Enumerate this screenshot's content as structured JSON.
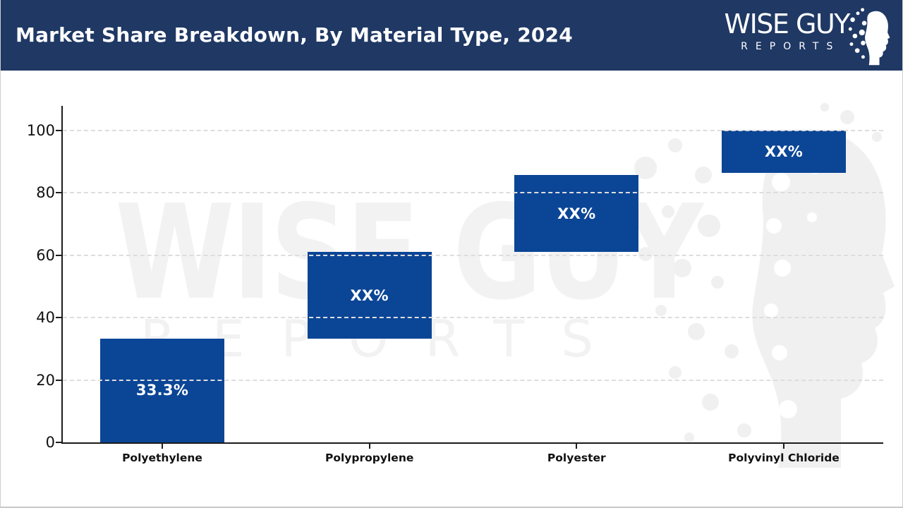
{
  "header": {
    "title": "Market Share Breakdown, By Material Type, 2024",
    "logo": {
      "line1": "WISE GUY",
      "line2": "REPORTS"
    }
  },
  "watermark": {
    "line1": "WISE GUY",
    "line2": "REPORTS"
  },
  "colors": {
    "header_bg": "#1f3864",
    "bar": "#0b4596",
    "bar_label": "#ffffff",
    "axis": "#1c1c1c",
    "grid": "#dddddd",
    "watermark": "#f2f2f2",
    "text": "#111111"
  },
  "chart_data": {
    "type": "bar",
    "subtype": "floating-waterfall",
    "title": "Market Share Breakdown, By Material Type, 2024",
    "categories": [
      "Polyethylene",
      "Polypropylene",
      "Polyester",
      "Polyvinyl Chloride"
    ],
    "segments": [
      {
        "category": "Polyethylene",
        "start": 0,
        "end": 33.3,
        "label": "33.3%"
      },
      {
        "category": "Polypropylene",
        "start": 33.3,
        "end": 61,
        "label": "XX%"
      },
      {
        "category": "Polyester",
        "start": 61,
        "end": 85.7,
        "label": "XX%"
      },
      {
        "category": "Polyvinyl Chloride",
        "start": 86.5,
        "end": 100,
        "label": "XX%"
      }
    ],
    "yticks": [
      0,
      20,
      40,
      60,
      80,
      100
    ],
    "ylim": [
      0,
      100
    ],
    "xlabel": "",
    "ylabel": "",
    "grid": "horizontal-dashed-over-bars",
    "legend": "none"
  }
}
